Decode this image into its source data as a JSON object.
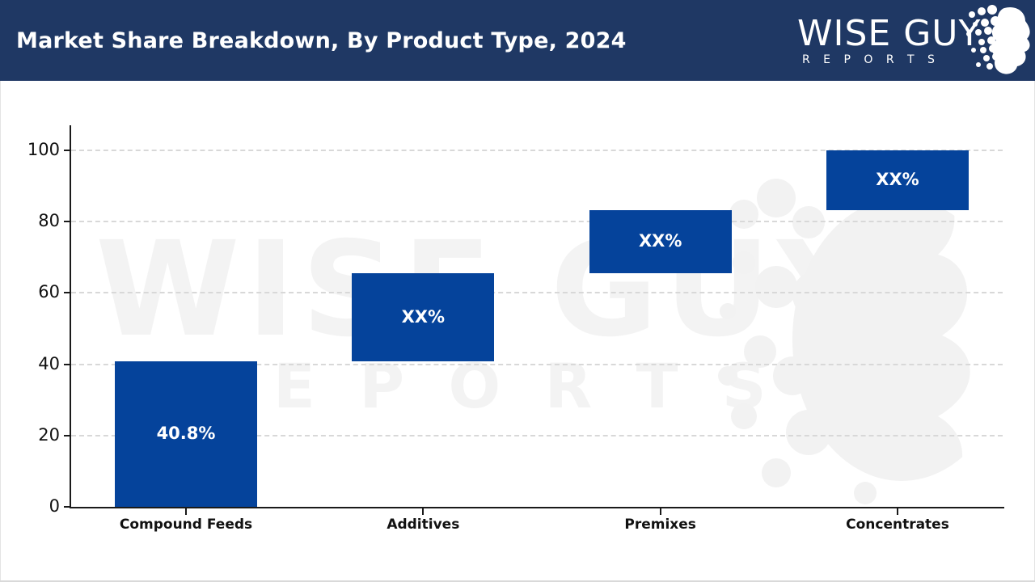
{
  "header": {
    "title": "Market Share Breakdown, By Product Type, 2024",
    "logo": {
      "line1": "WISE GUY",
      "line2": "R E P O R T S"
    }
  },
  "watermark": {
    "line1": "WISE GUY",
    "line2": "R E P O R T S"
  },
  "colors": {
    "header_bg": "#1f3864",
    "bar": "#05439b",
    "bar_label": "#ffffff",
    "grid": "#d8d8d8",
    "axis": "#1a1a1a",
    "watermark": "#f3f3f3"
  },
  "chart_data": {
    "type": "bar",
    "subtype": "waterfall",
    "title": "Market Share Breakdown, By Product Type, 2024",
    "xlabel": "",
    "ylabel": "",
    "categories": [
      "Compound Feeds",
      "Additives",
      "Premixes",
      "Concentrates"
    ],
    "segments": [
      {
        "category": "Compound Feeds",
        "start": 0,
        "end": 40.8,
        "label": "40.8%"
      },
      {
        "category": "Additives",
        "start": 40.8,
        "end": 65.5,
        "label": "XX%"
      },
      {
        "category": "Premixes",
        "start": 65.5,
        "end": 83.2,
        "label": "XX%"
      },
      {
        "category": "Concentrates",
        "start": 83.2,
        "end": 100,
        "label": "XX%"
      }
    ],
    "yticks": [
      0,
      20,
      40,
      60,
      80,
      100
    ],
    "ylim": [
      0,
      107
    ],
    "grid": "horizontal dashed",
    "legend": "none"
  }
}
